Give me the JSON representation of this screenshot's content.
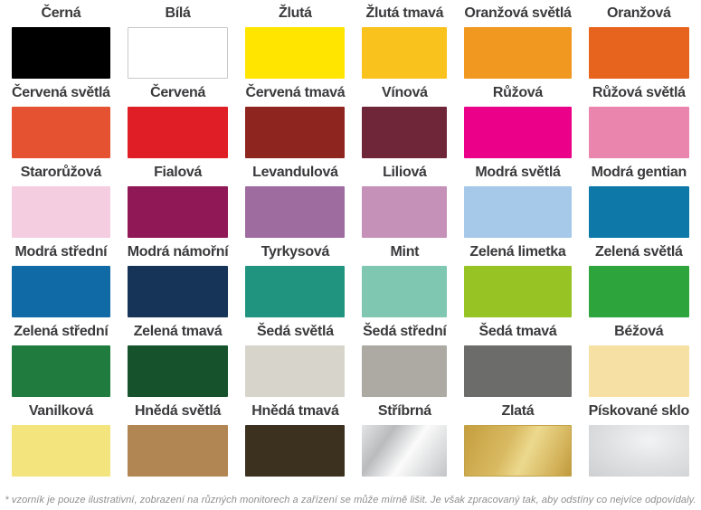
{
  "palette": {
    "label_color": "#3A3A3C",
    "swatches": [
      {
        "label": "Černá",
        "bg": {
          "kind": "solid",
          "color": "#000000"
        }
      },
      {
        "label": "Bílá",
        "bg": {
          "kind": "solid",
          "color": "#FFFFFF"
        },
        "border": "#C9C9C9"
      },
      {
        "label": "Žlutá",
        "bg": {
          "kind": "solid",
          "color": "#FFE500"
        }
      },
      {
        "label": "Žlutá tmavá",
        "bg": {
          "kind": "solid",
          "color": "#F9C21D"
        }
      },
      {
        "label": "Oranžová světlá",
        "bg": {
          "kind": "solid",
          "color": "#F0981F"
        }
      },
      {
        "label": "Oranžová",
        "bg": {
          "kind": "solid",
          "color": "#E7641E"
        }
      },
      {
        "label": "Červená světlá",
        "bg": {
          "kind": "solid",
          "color": "#E55232"
        }
      },
      {
        "label": "Červená",
        "bg": {
          "kind": "solid",
          "color": "#E01E25"
        }
      },
      {
        "label": "Červená tmavá",
        "bg": {
          "kind": "solid",
          "color": "#8F251F"
        }
      },
      {
        "label": "Vínová",
        "bg": {
          "kind": "solid",
          "color": "#6F2639"
        }
      },
      {
        "label": "Růžová",
        "bg": {
          "kind": "solid",
          "color": "#EB0089"
        }
      },
      {
        "label": "Růžová světlá",
        "bg": {
          "kind": "solid",
          "color": "#EA85AE"
        }
      },
      {
        "label": "Starorůžová",
        "bg": {
          "kind": "solid",
          "color": "#F5CDE1"
        }
      },
      {
        "label": "Fialová",
        "bg": {
          "kind": "solid",
          "color": "#911857"
        }
      },
      {
        "label": "Levandulová",
        "bg": {
          "kind": "solid",
          "color": "#9F6C9F"
        }
      },
      {
        "label": "Liliová",
        "bg": {
          "kind": "solid",
          "color": "#C591B9"
        }
      },
      {
        "label": "Modrá světlá",
        "bg": {
          "kind": "solid",
          "color": "#A6C9E9"
        }
      },
      {
        "label": "Modrá gentian",
        "bg": {
          "kind": "solid",
          "color": "#0E79A9"
        }
      },
      {
        "label": "Modrá střední",
        "bg": {
          "kind": "solid",
          "color": "#106AA6"
        }
      },
      {
        "label": "Modrá námořní",
        "bg": {
          "kind": "solid",
          "color": "#153457"
        }
      },
      {
        "label": "Tyrkysová",
        "bg": {
          "kind": "solid",
          "color": "#219480"
        }
      },
      {
        "label": "Mint",
        "bg": {
          "kind": "solid",
          "color": "#7FC7B0"
        }
      },
      {
        "label": "Zelená limetka",
        "bg": {
          "kind": "solid",
          "color": "#98C325"
        }
      },
      {
        "label": "Zelená světlá",
        "bg": {
          "kind": "solid",
          "color": "#2EA43D"
        }
      },
      {
        "label": "Zelená střední",
        "bg": {
          "kind": "solid",
          "color": "#207C3E"
        }
      },
      {
        "label": "Zelená tmavá",
        "bg": {
          "kind": "solid",
          "color": "#16532C"
        }
      },
      {
        "label": "Šedá světlá",
        "bg": {
          "kind": "solid",
          "color": "#D7D4CC"
        }
      },
      {
        "label": "Šedá střední",
        "bg": {
          "kind": "solid",
          "color": "#ACAAA3"
        }
      },
      {
        "label": "Šedá tmavá",
        "bg": {
          "kind": "solid",
          "color": "#6C6C6A"
        }
      },
      {
        "label": "Béžová",
        "bg": {
          "kind": "solid",
          "color": "#F6E0A4"
        }
      },
      {
        "label": "Vanilková",
        "bg": {
          "kind": "solid",
          "color": "#F3E47E"
        }
      },
      {
        "label": "Hnědá světlá",
        "bg": {
          "kind": "solid",
          "color": "#B28652"
        }
      },
      {
        "label": "Hnědá tmavá",
        "bg": {
          "kind": "solid",
          "color": "#3C301F"
        }
      },
      {
        "label": "Stříbrná",
        "bg": {
          "kind": "linear",
          "angle": 125,
          "stops": [
            [
              "#E3E4E5",
              0
            ],
            [
              "#B9BBBD",
              28
            ],
            [
              "#FBFBFB",
              55
            ],
            [
              "#C2C4C6",
              100
            ]
          ]
        }
      },
      {
        "label": "Zlatá",
        "bg": {
          "kind": "linear",
          "angle": 115,
          "stops": [
            [
              "#C59E3E",
              0
            ],
            [
              "#D9BA62",
              40
            ],
            [
              "#ECD98E",
              58
            ],
            [
              "#D3B25A",
              85
            ],
            [
              "#BF9A3C",
              100
            ]
          ]
        },
        "border": "#C2A249"
      },
      {
        "label": "Pískované sklo",
        "bg": {
          "kind": "radial",
          "at": "60% 30%",
          "stops": [
            [
              "#F2F3F4",
              0
            ],
            [
              "#DEE0E1",
              50
            ],
            [
              "#CDCFD1",
              100
            ]
          ]
        }
      }
    ]
  },
  "footnote": {
    "text": "* vzorník je pouze ilustrativní, zobrazení na různých monitorech a zařízení se může mírně lišit. Je však zpracovaný tak, aby odstíny co nejvíce odpovídaly."
  }
}
